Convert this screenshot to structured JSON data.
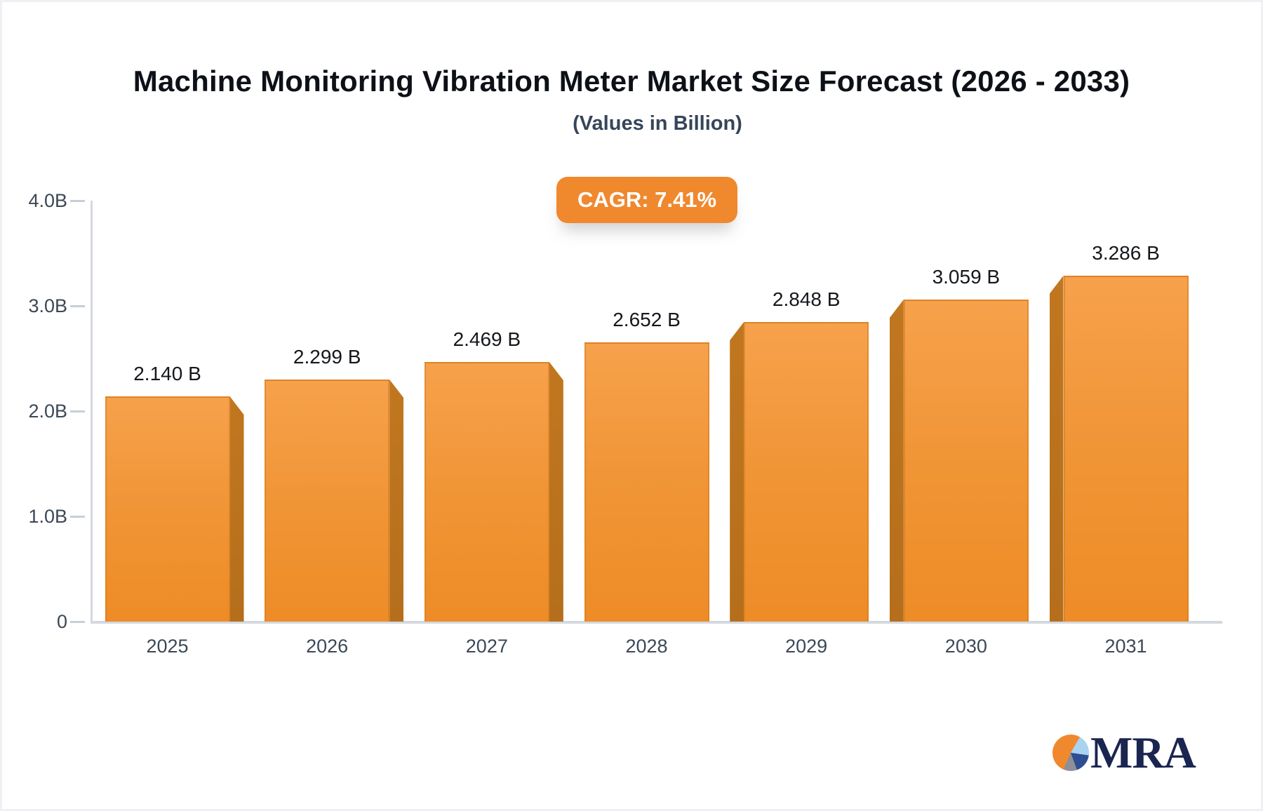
{
  "header": {
    "title": "Machine Monitoring Vibration Meter Market Size Forecast (2026 - 2033)",
    "subtitle": "(Values in Billion)"
  },
  "badge": {
    "label": "CAGR: 7.41%"
  },
  "logo": {
    "text": "MRA"
  },
  "colors": {
    "badge_bg": "#f0882e",
    "badge_text": "#ffffff",
    "bar_front_top": "#f6a14c",
    "bar_front_bottom": "#ee8c27",
    "bar_side": "#b56e1b",
    "axis": "#d4d8df",
    "tick_label": "#3c4856",
    "title_color": "#0d1117",
    "subtitle_color": "#36455a",
    "logo_navy": "#1a2550",
    "logo_orange": "#f0882e",
    "logo_lightblue": "#a9d3ef",
    "logo_blue": "#2e4d92",
    "logo_gray": "#8f9097"
  },
  "chart_data": {
    "type": "bar",
    "title": "Machine Monitoring Vibration Meter Market Size Forecast (2026 - 2033)",
    "subtitle": "(Values in Billion)",
    "annotation": "CAGR: 7.41%",
    "categories": [
      "2025",
      "2026",
      "2027",
      "2028",
      "2029",
      "2030",
      "2031"
    ],
    "values": [
      2.14,
      2.299,
      2.469,
      2.652,
      2.848,
      3.059,
      3.286
    ],
    "bar_labels": [
      "2.140 B",
      "2.299 B",
      "2.469 B",
      "2.652 B",
      "2.848 B",
      "3.059 B",
      "3.286 B"
    ],
    "yticks": [
      {
        "label": "0",
        "value": 0
      },
      {
        "label": "1.0B",
        "value": 1
      },
      {
        "label": "2.0B",
        "value": 2
      },
      {
        "label": "3.0B",
        "value": 3
      },
      {
        "label": "4.0B",
        "value": 4
      }
    ],
    "ylim": [
      0,
      4.0
    ],
    "xlabel": "",
    "ylabel": "",
    "grid": false,
    "legend": false,
    "bar_style": "3d-perspective-center"
  }
}
